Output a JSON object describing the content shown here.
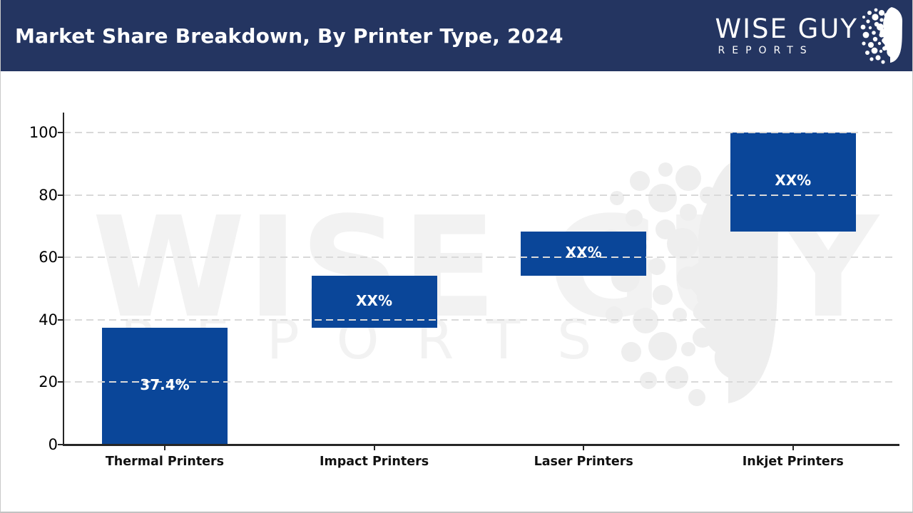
{
  "header": {
    "title": "Market Share Breakdown, By Printer Type, 2024",
    "bg_color": "#243561",
    "logo": {
      "line1": "WISE GUY",
      "line2": "REPORTS"
    }
  },
  "watermark": {
    "line1": "WISE GUY",
    "line2": "REPORTS"
  },
  "chart_data": {
    "type": "bar",
    "subtype": "waterfall",
    "title": "Market Share Breakdown, By Printer Type, 2024",
    "xlabel": "",
    "ylabel": "",
    "categories": [
      "Thermal Printers",
      "Impact Printers",
      "Laser Printers",
      "Inkjet Printers"
    ],
    "segments": [
      {
        "category": "Thermal Printers",
        "start": 0,
        "end": 37.4,
        "value": 37.4,
        "label": "37.4%"
      },
      {
        "category": "Impact Printers",
        "start": 37.4,
        "end": 54.0,
        "value": 16.6,
        "label": "XX%"
      },
      {
        "category": "Laser Printers",
        "start": 54.0,
        "end": 68.3,
        "value": 14.3,
        "label": "XX%"
      },
      {
        "category": "Inkjet Printers",
        "start": 68.3,
        "end": 100.0,
        "value": 31.7,
        "label": "XX%"
      }
    ],
    "yticks": [
      0,
      20,
      40,
      60,
      80,
      100
    ],
    "ylim": [
      0,
      105
    ],
    "grid": "horizontal-dashed-over-bars",
    "bar_color": "#0a4699",
    "bar_label_color": "#ffffff",
    "gridline_color": "#d9d9d9",
    "axis_color": "#262626"
  }
}
